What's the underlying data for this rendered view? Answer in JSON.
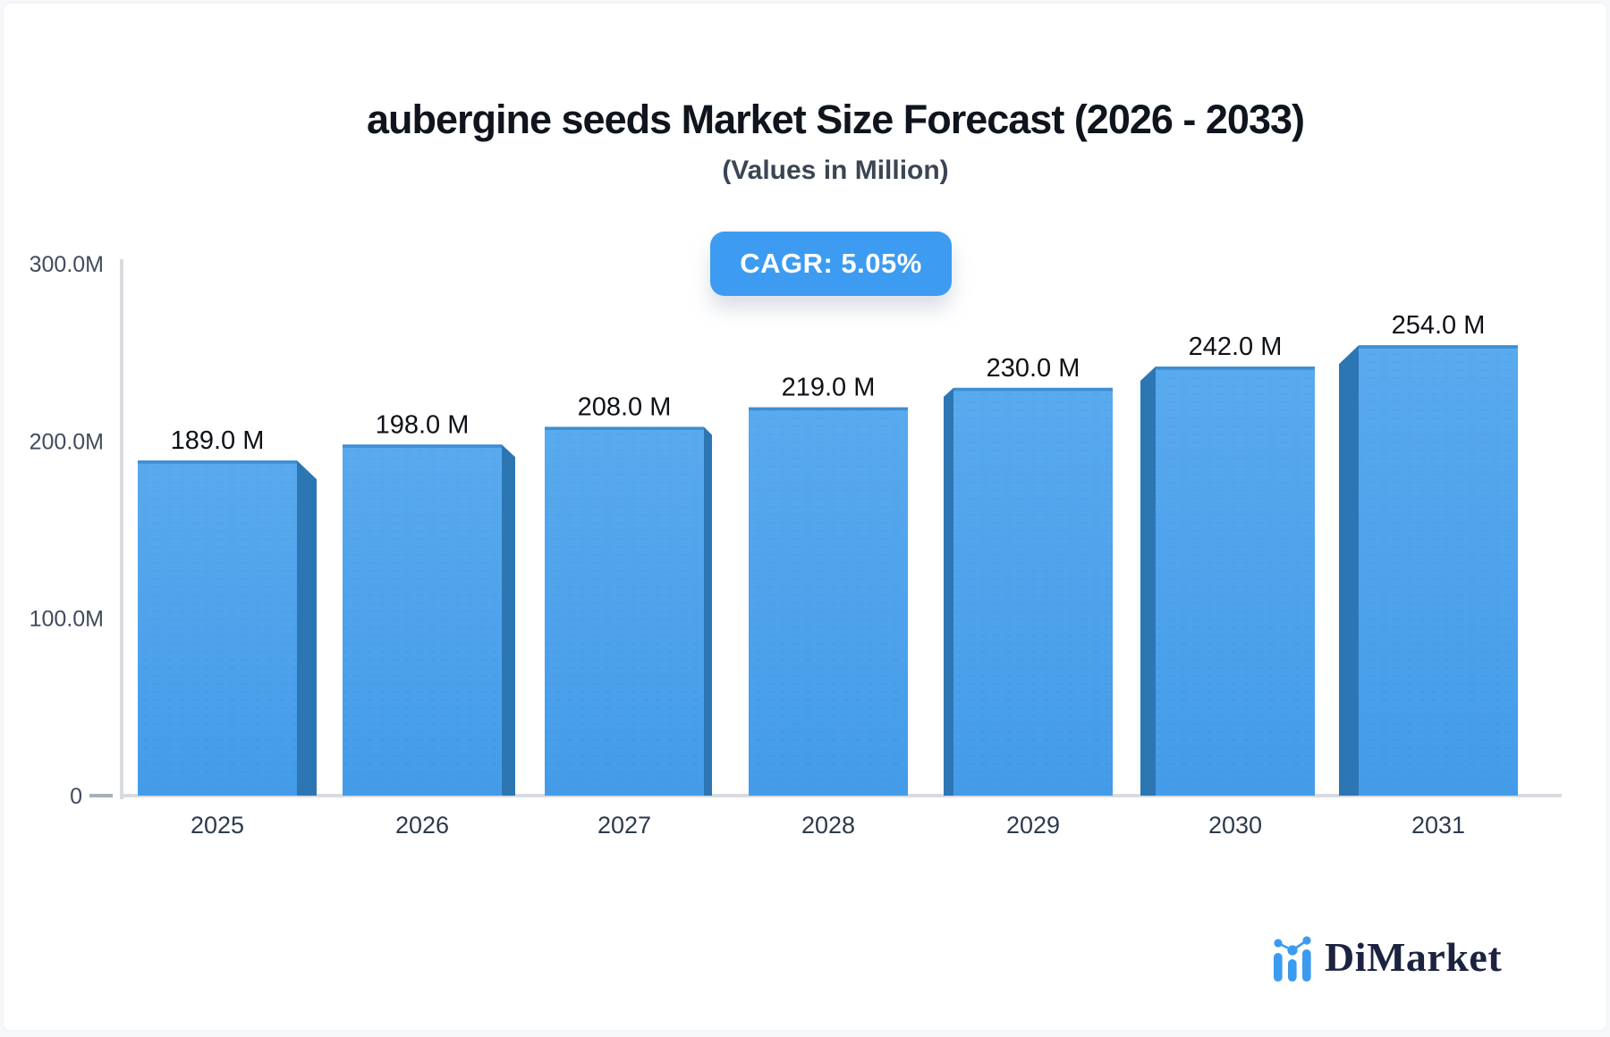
{
  "header": {
    "title": "aubergine seeds Market Size Forecast (2026 - 2033)",
    "subtitle": "(Values in Million)",
    "cagr_badge": "CAGR: 5.05%"
  },
  "brand": {
    "name": "DiMarket",
    "icon": "bars-sparkline-logo-icon"
  },
  "colors": {
    "accent_blue": "#3d9cf1",
    "bar_face_top": "#59aaee",
    "bar_face_bottom": "#449ce9",
    "bar_side": "#2d76b4",
    "bar_top_edge": "#3e8ed2",
    "axis_line": "#d8dbe0",
    "zero_tick_dash": "#a9afb8",
    "y_tick_text": "#414c5c",
    "x_tick_text": "#2e3a4c",
    "value_text": "#0e1116",
    "logo_text": "#1b2340",
    "logo_icon_blue": "#3b9bf0"
  },
  "chart_data": {
    "type": "bar",
    "title": "aubergine seeds Market Size Forecast (2026 - 2033)",
    "subtitle": "(Values in Million)",
    "cagr": "5.05%",
    "unit": "Million",
    "categories": [
      "2025",
      "2026",
      "2027",
      "2028",
      "2029",
      "2030",
      "2031"
    ],
    "values": [
      189.0,
      198.0,
      208.0,
      219.0,
      230.0,
      242.0,
      254.0
    ],
    "value_labels": [
      "189.0 M",
      "198.0 M",
      "208.0 M",
      "219.0 M",
      "230.0 M",
      "242.0 M",
      "254.0 M"
    ],
    "ylim": [
      0,
      300
    ],
    "y_ticks": [
      {
        "value": 300,
        "label": "300.0M"
      },
      {
        "value": 200,
        "label": "200.0M"
      },
      {
        "value": 100,
        "label": "100.0M"
      },
      {
        "value": 0,
        "label": "0"
      }
    ],
    "grid": false,
    "legend": false,
    "bar_style": "pseudo-3d-perspective"
  }
}
